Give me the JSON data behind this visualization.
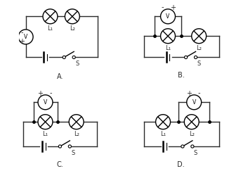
{
  "background_color": "#ffffff",
  "line_color": "#2a2a2a",
  "line_width": 1.0,
  "dot_color": "#000000",
  "dot_size": 3.5,
  "label_fontsize": 6,
  "diagrams": [
    "A",
    "B",
    "C",
    "D"
  ]
}
